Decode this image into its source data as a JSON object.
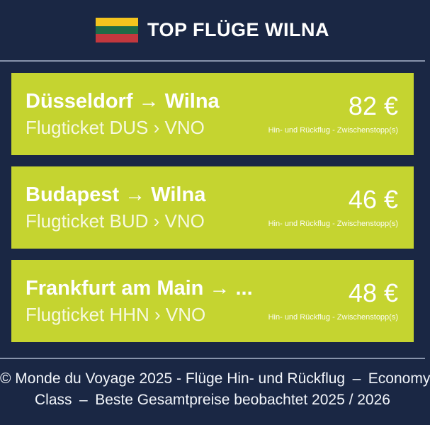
{
  "header": {
    "title": "TOP FLÜGE WILNA"
  },
  "flag": {
    "country": "Lithuania",
    "colors": {
      "yellow": "#F3C41E",
      "green": "#1E6B47",
      "red": "#C2383E"
    }
  },
  "cards": [
    {
      "route": "Düsseldorf → Wilna",
      "ticket": "Flugticket DUS › VNO",
      "price": "82 €",
      "note": "Hin- und Rückflug - Zwischenstopp(s)"
    },
    {
      "route": "Budapest → Wilna",
      "ticket": "Flugticket BUD › VNO",
      "price": "46 €",
      "note": "Hin- und Rückflug - Zwischenstopp(s)"
    },
    {
      "route": "Frankfurt am Main → ...",
      "ticket": "Flugticket HHN › VNO",
      "price": "48 €",
      "note": "Hin- und Rückflug - Zwischenstopp(s)"
    }
  ],
  "footer": {
    "line1": "© Monde du Voyage 2025 - Flüge Hin- und Rückflug – Economy",
    "line2": "Class – Beste Gesamtpreise beobachtet 2025 / 2026"
  },
  "colors": {
    "background": "#1A2744",
    "card": "#C5D430",
    "divider": "#8793AB",
    "text": "#FFFFFF"
  }
}
